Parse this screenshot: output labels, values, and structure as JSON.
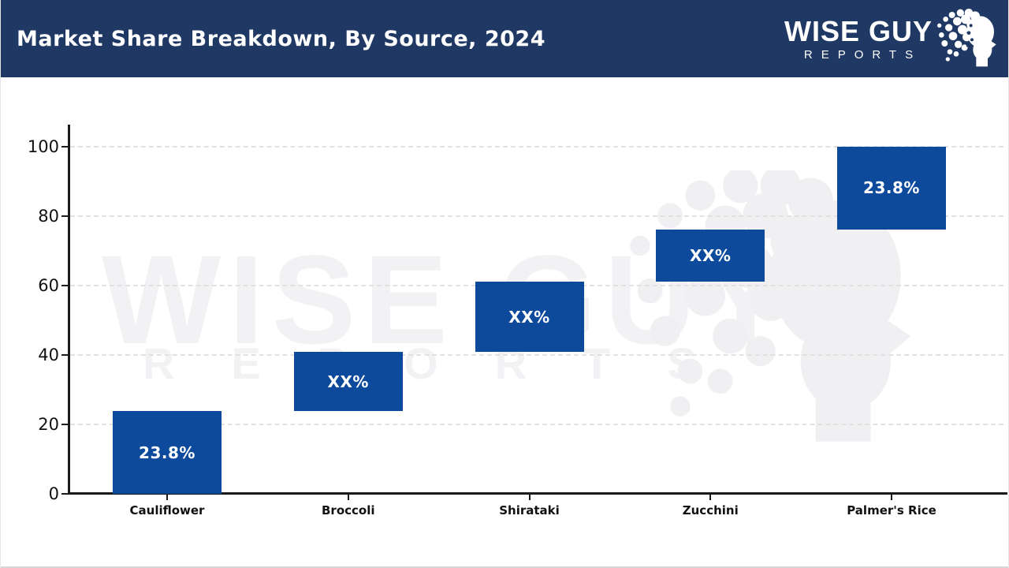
{
  "header": {
    "title": "Market Share Breakdown, By Source, 2024",
    "logo": {
      "brand": "WISE GUY",
      "sub": "REPORTS"
    }
  },
  "watermark": {
    "brand": "WISE GUY",
    "sub": "REPORTS"
  },
  "chart_data": {
    "type": "bar",
    "subtype": "floating-waterfall",
    "title": "Market Share Breakdown, By Source, 2024",
    "categories": [
      "Cauliflower",
      "Broccoli",
      "Shirataki",
      "Zucchini",
      "Palmer's Rice"
    ],
    "segments": [
      {
        "category": "Cauliflower",
        "start": 0,
        "end": 23.8,
        "label": "23.8%"
      },
      {
        "category": "Broccoli",
        "start": 23.8,
        "end": 40.8,
        "label": "XX%"
      },
      {
        "category": "Shirataki",
        "start": 40.8,
        "end": 61.2,
        "label": "XX%"
      },
      {
        "category": "Zucchini",
        "start": 61.2,
        "end": 76.2,
        "label": "XX%"
      },
      {
        "category": "Palmer's Rice",
        "start": 76.2,
        "end": 100,
        "label": "23.8%"
      }
    ],
    "ylim": [
      0,
      100
    ],
    "yticks": [
      0,
      20,
      40,
      60,
      80,
      100
    ],
    "xlabel": "",
    "ylabel": "",
    "grid": "horizontal-dashed",
    "legend": null,
    "bar_color": "#0e4a9c",
    "bar_label_color": "#ffffff"
  },
  "colors": {
    "header_bg": "#1f3864",
    "bar": "#0e4a9c",
    "grid": "#e1e1e1",
    "axis": "#1a1a1a",
    "watermark": "#f2f2f4"
  }
}
